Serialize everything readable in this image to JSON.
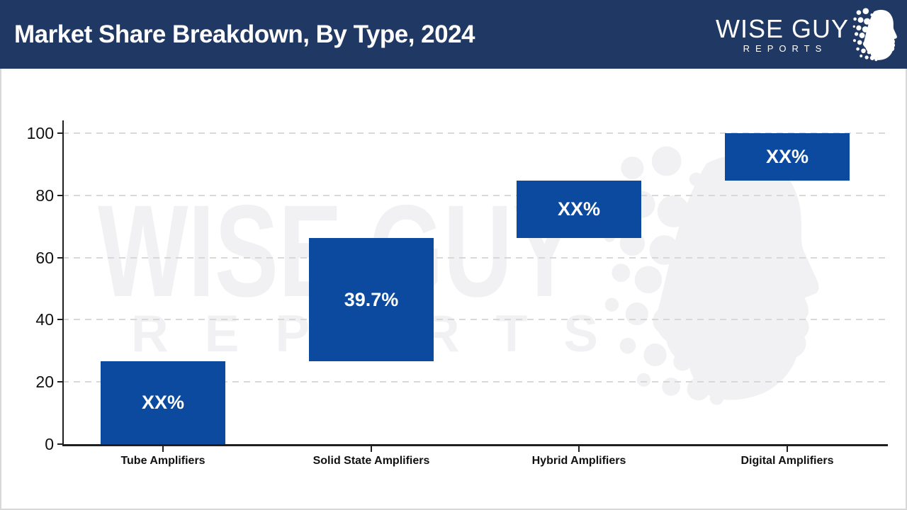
{
  "header": {
    "title": "Market Share Breakdown, By Type, 2024",
    "logo": {
      "line1": "WISE GUY",
      "line2": "REPORTS"
    }
  },
  "watermark": {
    "line1": "WISE GUY",
    "line2": "REPORTS"
  },
  "colors": {
    "header_bg": "#203864",
    "bar": "#0b4a9f",
    "bar_label_text": "#ffffff",
    "axis": "#1f1f1f",
    "grid": "#d8d8d8",
    "watermark": "#f1f1f3",
    "title_text": "#ffffff",
    "tick_text": "#111111"
  },
  "chart_data": {
    "type": "bar",
    "subtype": "waterfall",
    "title": "Market Share Breakdown, By Type, 2024",
    "xlabel": "",
    "ylabel": "",
    "ylim": [
      0,
      100
    ],
    "yticks": [
      0,
      20,
      40,
      60,
      80,
      100
    ],
    "grid": "horizontal-dashed",
    "legend": "none",
    "categories": [
      "Tube Amplifiers",
      "Solid State Amplifiers",
      "Hybrid Amplifiers",
      "Digital Amplifiers"
    ],
    "segments": [
      {
        "category": "Tube Amplifiers",
        "label": "XX%",
        "start": 0,
        "end": 26.6
      },
      {
        "category": "Solid State Amplifiers",
        "label": "39.7%",
        "start": 26.6,
        "end": 66.3
      },
      {
        "category": "Hybrid Amplifiers",
        "label": "XX%",
        "start": 66.3,
        "end": 84.8
      },
      {
        "category": "Digital Amplifiers",
        "label": "XX%",
        "start": 84.8,
        "end": 100
      }
    ]
  }
}
